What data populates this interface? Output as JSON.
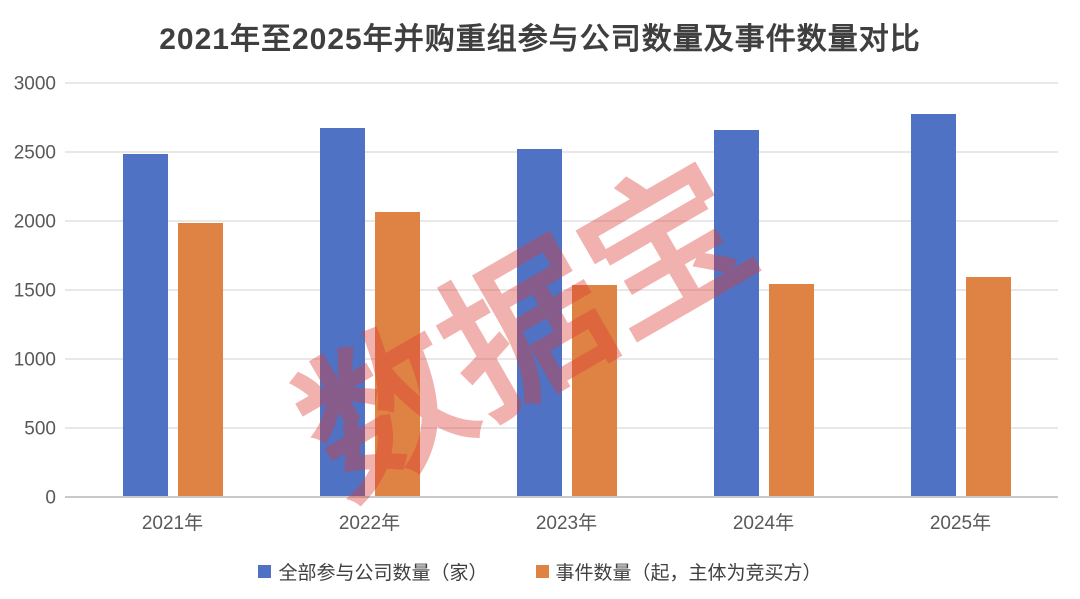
{
  "title": "2021年至2025年并购重组参与公司数量及事件数量对比",
  "watermark": "数据宝",
  "chart_data": {
    "type": "bar",
    "categories": [
      "2021年",
      "2022年",
      "2023年",
      "2024年",
      "2025年"
    ],
    "series": [
      {
        "key": "companies",
        "name": "全部参与公司数量（家）",
        "color": "#4F72C4",
        "values": [
          2490,
          2680,
          2530,
          2670,
          2780
        ]
      },
      {
        "key": "events",
        "name": "事件数量（起，主体为竞买方）",
        "color": "#DE8344",
        "values": [
          1990,
          2070,
          1540,
          1550,
          1600
        ]
      }
    ],
    "ylim": [
      0,
      3000
    ],
    "yticks": [
      0,
      500,
      1000,
      1500,
      2000,
      2500,
      3000
    ],
    "grid": true,
    "legend_position": "bottom",
    "watermark_color": "#DC3C37",
    "title_color": "#3F3F3F",
    "axis_label_color": "#595959"
  }
}
